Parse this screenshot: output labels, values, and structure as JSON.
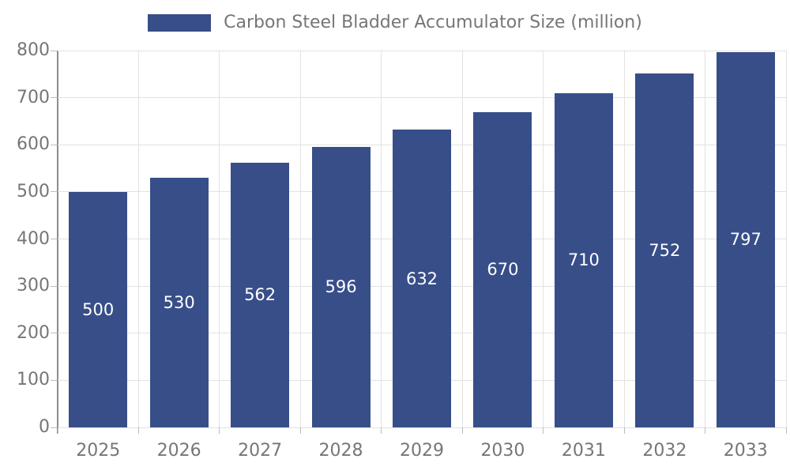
{
  "legend": {
    "label": "Carbon Steel Bladder Accumulator Size (million)"
  },
  "colors": {
    "bar": "#374e89",
    "bar_label_text": "#ffffff",
    "tick_text": "#767676",
    "legend_text": "#767676",
    "gridline": "#e2e2e2",
    "axis_line": "#8c8c8c",
    "tick_mark": "#bdbdbd",
    "background": "#ffffff"
  },
  "chart_data": {
    "type": "bar",
    "title": "",
    "xlabel": "",
    "ylabel": "",
    "categories": [
      "2025",
      "2026",
      "2027",
      "2028",
      "2029",
      "2030",
      "2031",
      "2032",
      "2033"
    ],
    "series": [
      {
        "name": "Carbon Steel Bladder Accumulator Size (million)",
        "values": [
          500,
          530,
          562,
          596,
          632,
          670,
          710,
          752,
          797
        ]
      }
    ],
    "bar_value_labels": [
      "500",
      "530",
      "562",
      "596",
      "632",
      "670",
      "710",
      "752",
      "797"
    ],
    "bar_label_position": "inside-center",
    "ylim": [
      0,
      800
    ],
    "yticks": [
      0,
      100,
      200,
      300,
      400,
      500,
      600,
      700,
      800
    ],
    "grid": true,
    "legend_position": "top-center"
  }
}
